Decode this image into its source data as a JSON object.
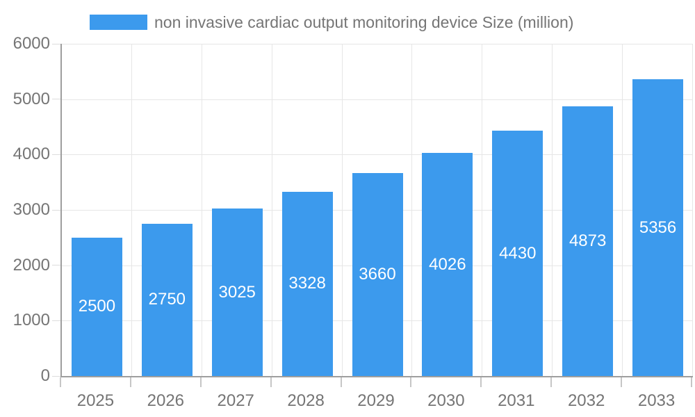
{
  "chart_data": {
    "type": "bar",
    "legend": "non invasive cardiac output monitoring device Size (million)",
    "categories": [
      "2025",
      "2026",
      "2027",
      "2028",
      "2029",
      "2030",
      "2031",
      "2032",
      "2033"
    ],
    "values": [
      2500,
      2750,
      3025,
      3328,
      3660,
      4026,
      4430,
      4873,
      5356
    ],
    "y_tick_labels": [
      "0",
      "1000",
      "2000",
      "3000",
      "4000",
      "5000",
      "6000"
    ],
    "ylim": [
      0,
      6000
    ],
    "y_tick_interval": 1000,
    "xlabel": "",
    "ylabel": "",
    "legend_position": "top",
    "grid": "on",
    "colors": {
      "bar": "#3C9AED",
      "bar_value_label": "#ffffff",
      "axis_text": "#757575",
      "legend_text": "#757575",
      "gridline": "#e6e6e6",
      "axis_line": "#9e9e9e"
    }
  }
}
